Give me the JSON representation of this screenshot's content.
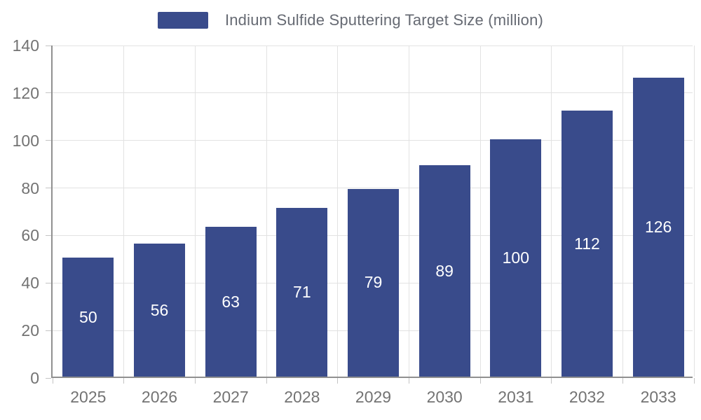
{
  "chart_data": {
    "type": "bar",
    "title": "Indium Sulfide Sputtering Target Size (million)",
    "categories": [
      "2025",
      "2026",
      "2027",
      "2028",
      "2029",
      "2030",
      "2031",
      "2032",
      "2033"
    ],
    "values": [
      50,
      56,
      63,
      71,
      79,
      89,
      100,
      112,
      126
    ],
    "xlabel": "",
    "ylabel": "",
    "ylim": [
      0,
      140
    ],
    "yticks": [
      0,
      20,
      40,
      60,
      80,
      100,
      120,
      140
    ],
    "grid": true,
    "legend_position": "top-center",
    "bar_labels_inside": true,
    "colors": {
      "bar": "#394B8B",
      "bar_label": "#ffffff",
      "tick_label": "#737373",
      "legend_text": "#666a73",
      "gridline": "#e2e2e2",
      "axis_line": "#909090",
      "background": "#ffffff"
    }
  },
  "legend": {
    "label": "Indium Sulfide Sputtering Target Size (million)"
  }
}
